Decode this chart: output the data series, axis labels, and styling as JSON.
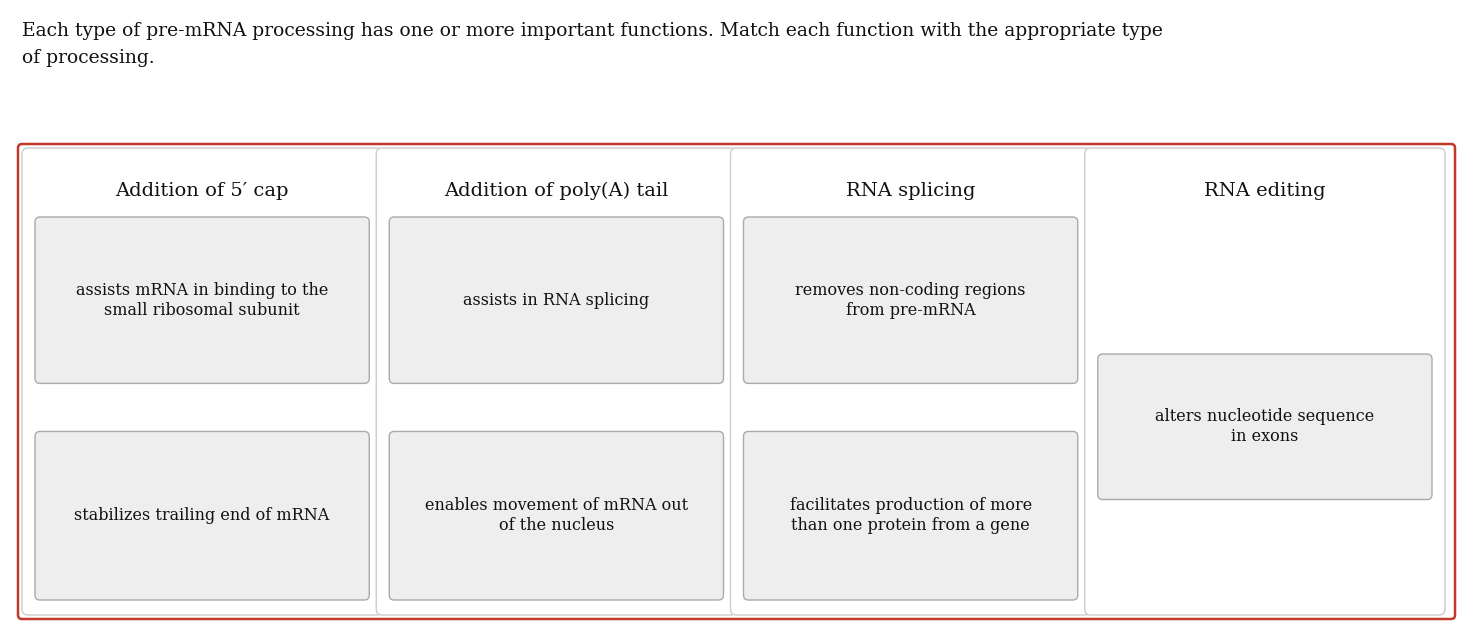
{
  "title_text": "Each type of pre-mRNA processing has one or more important functions. Match each function with the appropriate type\nof processing.",
  "background_color": "#ffffff",
  "outer_border_color": "#c0392b",
  "column_border_color": "#cccccc",
  "card_border_color": "#aaaaaa",
  "card_bg_color": "#eeeeee",
  "col_bg_color": "#ffffff",
  "columns": [
    {
      "header": "Addition of 5′ cap",
      "cards": [
        {
          "text": "assists mRNA in binding to the\nsmall ribosomal subunit",
          "slot": "upper"
        },
        {
          "text": "stabilizes trailing end of mRNA",
          "slot": "lower"
        }
      ]
    },
    {
      "header": "Addition of poly(A) tail",
      "cards": [
        {
          "text": "assists in RNA splicing",
          "slot": "upper"
        },
        {
          "text": "enables movement of mRNA out\nof the nucleus",
          "slot": "lower"
        }
      ]
    },
    {
      "header": "RNA splicing",
      "cards": [
        {
          "text": "removes non-coding regions\nfrom pre-mRNA",
          "slot": "upper"
        },
        {
          "text": "facilitates production of more\nthan one protein from a gene",
          "slot": "lower"
        }
      ]
    },
    {
      "header": "RNA editing",
      "cards": [
        {
          "text": "alters nucleotide sequence\nin exons",
          "slot": "middle"
        }
      ]
    }
  ],
  "title_fontsize": 13.5,
  "header_fontsize": 14,
  "card_fontsize": 11.5
}
